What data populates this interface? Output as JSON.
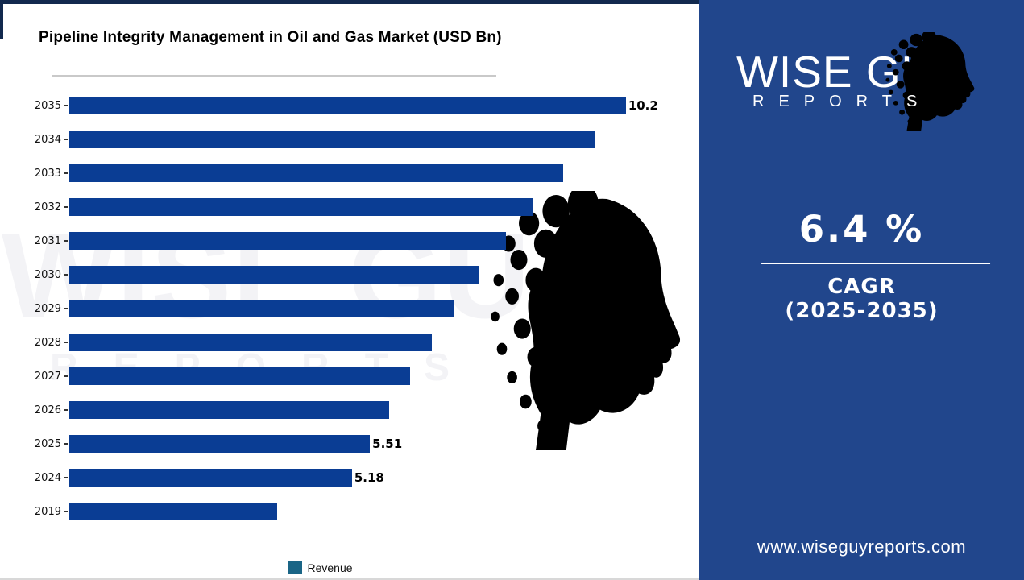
{
  "chart": {
    "title": "Pipeline Integrity Management in Oil and Gas Market (USD Bn)",
    "legend_label": "Revenue",
    "bar_color": "#0a3d94",
    "legend_swatch_color": "#1a6586"
  },
  "chart_data": {
    "type": "bar",
    "orientation": "horizontal",
    "title": "Pipeline Integrity Management in Oil and Gas Market (USD Bn)",
    "ylabel": "",
    "xlabel": "",
    "categories": [
      "2035",
      "2034",
      "2033",
      "2032",
      "2031",
      "2030",
      "2029",
      "2028",
      "2027",
      "2026",
      "2025",
      "2024",
      "2019"
    ],
    "values": [
      10.2,
      9.63,
      9.05,
      8.51,
      8.0,
      7.51,
      7.06,
      6.64,
      6.24,
      5.86,
      5.51,
      5.18,
      3.81
    ],
    "value_labels": [
      "10.2",
      "",
      "",
      "",
      "",
      "",
      "",
      "",
      "",
      "",
      "5.51",
      "5.18",
      ""
    ],
    "xlim": [
      0,
      11
    ],
    "grid": false,
    "legend": [
      "Revenue"
    ],
    "legend_position": "bottom"
  },
  "brand": {
    "logo_line1": "WISE GUY",
    "logo_line2": "REPORTS",
    "cagr_value": "6.4 %",
    "cagr_label": "CAGR",
    "cagr_range": "(2025-2035)",
    "website": "www.wiseguyreports.com",
    "panel_color": "#21468c"
  }
}
